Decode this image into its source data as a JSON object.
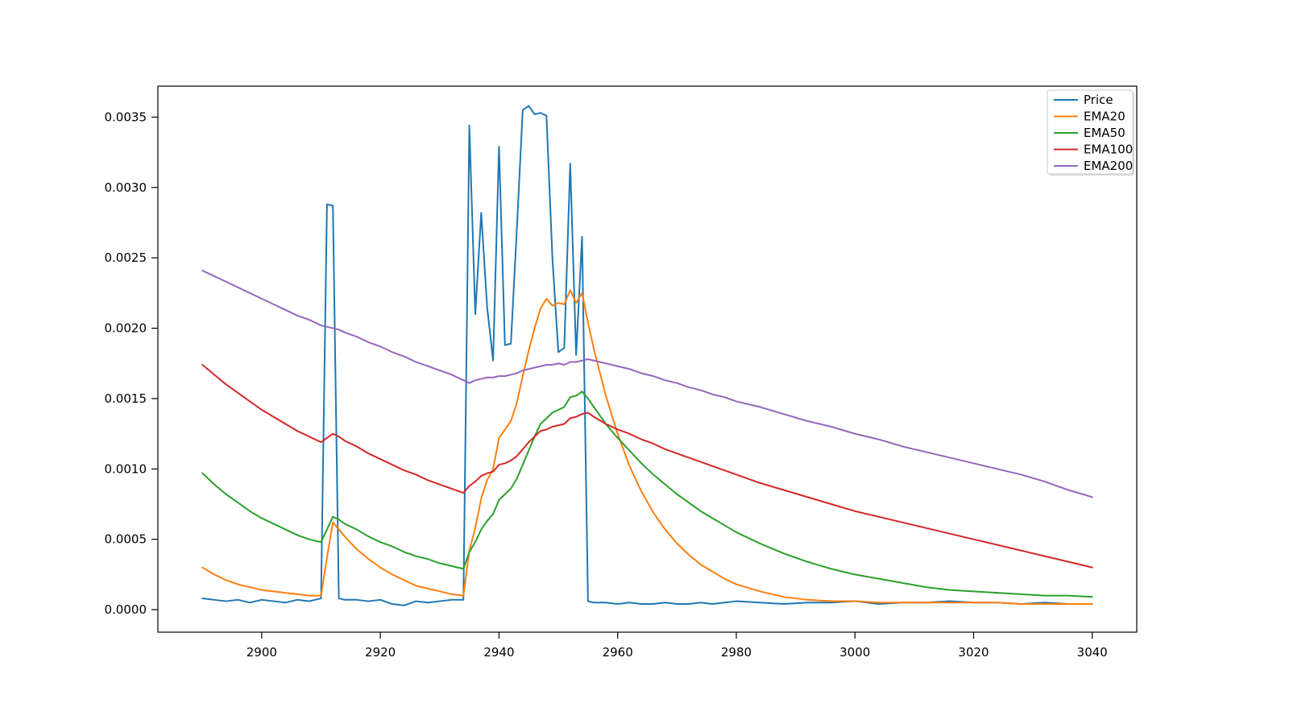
{
  "chart_data": {
    "type": "line",
    "title": "",
    "xlabel": "",
    "ylabel": "",
    "grid": false,
    "legend_position": "upper right",
    "legend_labels": [
      "Price",
      "EMA20",
      "EMA50",
      "EMA100",
      "EMA200"
    ],
    "xlim": [
      2882.5,
      3047.5
    ],
    "ylim": [
      -0.00016,
      0.00372
    ],
    "xticks": [
      2900,
      2920,
      2940,
      2960,
      2980,
      3000,
      3020,
      3040
    ],
    "yticks": [
      0.0,
      0.0005,
      0.001,
      0.0015,
      0.002,
      0.0025,
      0.003,
      0.0035
    ],
    "ytick_labels": [
      "0.0000",
      "0.0005",
      "0.0010",
      "0.0015",
      "0.0020",
      "0.0025",
      "0.0030",
      "0.0035"
    ],
    "x": [
      2890,
      2892,
      2894,
      2896,
      2898,
      2900,
      2902,
      2904,
      2906,
      2908,
      2909,
      2910,
      2911,
      2912,
      2913,
      2914,
      2916,
      2918,
      2920,
      2922,
      2924,
      2926,
      2928,
      2930,
      2932,
      2934,
      2935,
      2936,
      2937,
      2938,
      2939,
      2940,
      2941,
      2942,
      2943,
      2944,
      2945,
      2946,
      2947,
      2948,
      2949,
      2950,
      2951,
      2952,
      2953,
      2954,
      2955,
      2956,
      2958,
      2960,
      2962,
      2964,
      2966,
      2968,
      2970,
      2972,
      2974,
      2976,
      2978,
      2980,
      2984,
      2988,
      2992,
      2996,
      3000,
      3004,
      3008,
      3012,
      3016,
      3020,
      3024,
      3028,
      3032,
      3036,
      3040
    ],
    "series": [
      {
        "name": "Price",
        "color": "#1f77b4",
        "values": [
          8e-05,
          7e-05,
          6e-05,
          7e-05,
          5e-05,
          7e-05,
          6e-05,
          5e-05,
          7e-05,
          6e-05,
          7e-05,
          8e-05,
          0.00288,
          0.00287,
          8e-05,
          7e-05,
          7e-05,
          6e-05,
          7e-05,
          4e-05,
          3e-05,
          6e-05,
          5e-05,
          6e-05,
          7e-05,
          7e-05,
          0.00344,
          0.0021,
          0.00282,
          0.00215,
          0.00177,
          0.00329,
          0.00188,
          0.00189,
          0.0027,
          0.00355,
          0.00358,
          0.00352,
          0.00353,
          0.00351,
          0.0025,
          0.00183,
          0.00186,
          0.00317,
          0.00181,
          0.00265,
          6e-05,
          5e-05,
          5e-05,
          4e-05,
          5e-05,
          4e-05,
          4e-05,
          5e-05,
          4e-05,
          4e-05,
          5e-05,
          4e-05,
          5e-05,
          6e-05,
          5e-05,
          4e-05,
          5e-05,
          5e-05,
          6e-05,
          4e-05,
          5e-05,
          5e-05,
          6e-05,
          5e-05,
          5e-05,
          4e-05,
          5e-05,
          4e-05,
          4e-05
        ]
      },
      {
        "name": "EMA20",
        "color": "#ff7f0e",
        "values": [
          0.0003,
          0.00025,
          0.00021,
          0.00018,
          0.00016,
          0.00014,
          0.00013,
          0.00012,
          0.00011,
          0.0001,
          0.0001,
          0.0001,
          0.00037,
          0.00062,
          0.00057,
          0.00052,
          0.00043,
          0.00036,
          0.0003,
          0.00025,
          0.00021,
          0.00017,
          0.00015,
          0.00013,
          0.00011,
          0.0001,
          0.00042,
          0.00058,
          0.00079,
          0.00092,
          0.001,
          0.00122,
          0.00128,
          0.00134,
          0.00147,
          0.00166,
          0.00184,
          0.002,
          0.00214,
          0.00221,
          0.00216,
          0.00218,
          0.00217,
          0.00227,
          0.00218,
          0.00225,
          0.00204,
          0.00185,
          0.00152,
          0.00125,
          0.00102,
          0.00084,
          0.00069,
          0.00057,
          0.00047,
          0.00039,
          0.00032,
          0.00027,
          0.00022,
          0.00018,
          0.00013,
          9e-05,
          7e-05,
          6e-05,
          6e-05,
          5e-05,
          5e-05,
          5e-05,
          5e-05,
          5e-05,
          5e-05,
          4e-05,
          4e-05,
          4e-05,
          4e-05
        ]
      },
      {
        "name": "EMA50",
        "color": "#2ca02c",
        "values": [
          0.00097,
          0.00089,
          0.00082,
          0.00076,
          0.0007,
          0.00065,
          0.00061,
          0.00057,
          0.00053,
          0.0005,
          0.00049,
          0.00048,
          0.00057,
          0.00066,
          0.00064,
          0.00061,
          0.00057,
          0.00052,
          0.00048,
          0.00045,
          0.00041,
          0.00038,
          0.00036,
          0.00033,
          0.00031,
          0.00029,
          0.00041,
          0.00048,
          0.00057,
          0.00063,
          0.00068,
          0.00078,
          0.00082,
          0.00086,
          0.00093,
          0.00103,
          0.00113,
          0.00123,
          0.00132,
          0.00136,
          0.0014,
          0.00142,
          0.00144,
          0.00151,
          0.00152,
          0.00155,
          0.0015,
          0.00144,
          0.00132,
          0.00122,
          0.00113,
          0.00104,
          0.00096,
          0.00089,
          0.00082,
          0.00076,
          0.0007,
          0.00065,
          0.0006,
          0.00055,
          0.00047,
          0.0004,
          0.00034,
          0.00029,
          0.00025,
          0.00022,
          0.00019,
          0.00016,
          0.00014,
          0.00013,
          0.00012,
          0.00011,
          0.0001,
          0.0001,
          9e-05
        ]
      },
      {
        "name": "EMA100",
        "color": "#d62728",
        "values": [
          0.00174,
          0.00167,
          0.0016,
          0.00154,
          0.00148,
          0.00142,
          0.00137,
          0.00132,
          0.00127,
          0.00123,
          0.00121,
          0.00119,
          0.00122,
          0.00125,
          0.00123,
          0.0012,
          0.00116,
          0.00111,
          0.00107,
          0.00103,
          0.00099,
          0.00096,
          0.00092,
          0.00089,
          0.00086,
          0.00083,
          0.00088,
          0.00091,
          0.00095,
          0.00097,
          0.00098,
          0.00103,
          0.00104,
          0.00106,
          0.00109,
          0.00114,
          0.00119,
          0.00123,
          0.00127,
          0.00128,
          0.0013,
          0.00131,
          0.00132,
          0.00136,
          0.00137,
          0.00139,
          0.0014,
          0.00137,
          0.00132,
          0.00128,
          0.00125,
          0.00121,
          0.00118,
          0.00114,
          0.00111,
          0.00108,
          0.00105,
          0.00102,
          0.00099,
          0.00096,
          0.0009,
          0.00085,
          0.0008,
          0.00075,
          0.0007,
          0.00066,
          0.00062,
          0.00058,
          0.00054,
          0.0005,
          0.00046,
          0.00042,
          0.00038,
          0.00034,
          0.0003
        ]
      },
      {
        "name": "EMA200",
        "color": "#9467bd",
        "values": [
          0.00241,
          0.00237,
          0.00233,
          0.00229,
          0.00225,
          0.00221,
          0.00217,
          0.00213,
          0.00209,
          0.00206,
          0.00204,
          0.00202,
          0.00201,
          0.002,
          0.00199,
          0.00197,
          0.00194,
          0.0019,
          0.00187,
          0.00183,
          0.0018,
          0.00176,
          0.00173,
          0.0017,
          0.00167,
          0.00163,
          0.00161,
          0.00163,
          0.00164,
          0.00165,
          0.00165,
          0.00166,
          0.00166,
          0.00167,
          0.00168,
          0.0017,
          0.00171,
          0.00172,
          0.00173,
          0.00174,
          0.00174,
          0.00175,
          0.00174,
          0.00176,
          0.00176,
          0.00177,
          0.00178,
          0.00177,
          0.00175,
          0.00173,
          0.00171,
          0.00168,
          0.00166,
          0.00163,
          0.00161,
          0.00158,
          0.00156,
          0.00153,
          0.00151,
          0.00148,
          0.00144,
          0.00139,
          0.00134,
          0.0013,
          0.00125,
          0.00121,
          0.00116,
          0.00112,
          0.00108,
          0.00104,
          0.001,
          0.00096,
          0.00091,
          0.00085,
          0.0008
        ]
      }
    ]
  }
}
